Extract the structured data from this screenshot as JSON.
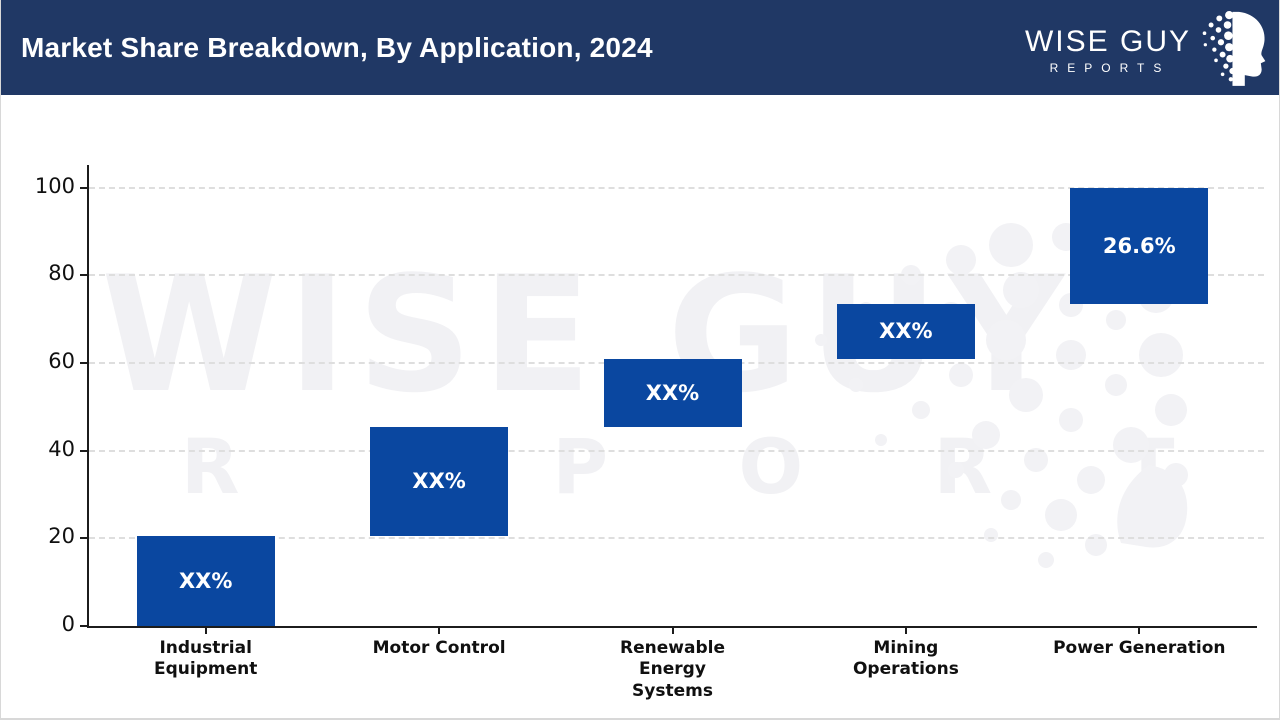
{
  "header": {
    "title": "Market Share Breakdown, By Application, 2024",
    "bg_color": "#203865",
    "logo": {
      "line1": "WISE GUY",
      "line2": "REPORTS"
    }
  },
  "watermark": {
    "line1": "WISE GUY",
    "line2": "R E P O R T S"
  },
  "chart_data": {
    "type": "bar",
    "subtype": "waterfall",
    "title": "Market Share Breakdown, By Application, 2024",
    "categories": [
      "Industrial Equipment",
      "Motor Control",
      "Renewable Energy Systems",
      "Mining Operations",
      "Power Generation"
    ],
    "category_labels_display": [
      "Industrial\nEquipment",
      "Motor Control",
      "Renewable Energy\nSystems",
      "Mining Operations",
      "Power Generation"
    ],
    "segments": [
      {
        "category": "Industrial Equipment",
        "start": 0,
        "end": 20.5,
        "value_label": "XX%"
      },
      {
        "category": "Motor Control",
        "start": 20.5,
        "end": 45.5,
        "value_label": "XX%"
      },
      {
        "category": "Renewable Energy Systems",
        "start": 45.5,
        "end": 61.0,
        "value_label": "XX%"
      },
      {
        "category": "Mining Operations",
        "start": 61.0,
        "end": 73.4,
        "value_label": "XX%"
      },
      {
        "category": "Power Generation",
        "start": 73.4,
        "end": 100,
        "value_label": "26.6%"
      }
    ],
    "yticks": [
      0,
      20,
      40,
      60,
      80,
      100
    ],
    "ylim": [
      0,
      100
    ],
    "xlabel": "",
    "ylabel": "",
    "legend": "none",
    "grid": "dashed-horizontal",
    "bar_color": "#0a47a0",
    "gridline_color": "#dedede",
    "axis_color": "#1c1c1c"
  }
}
